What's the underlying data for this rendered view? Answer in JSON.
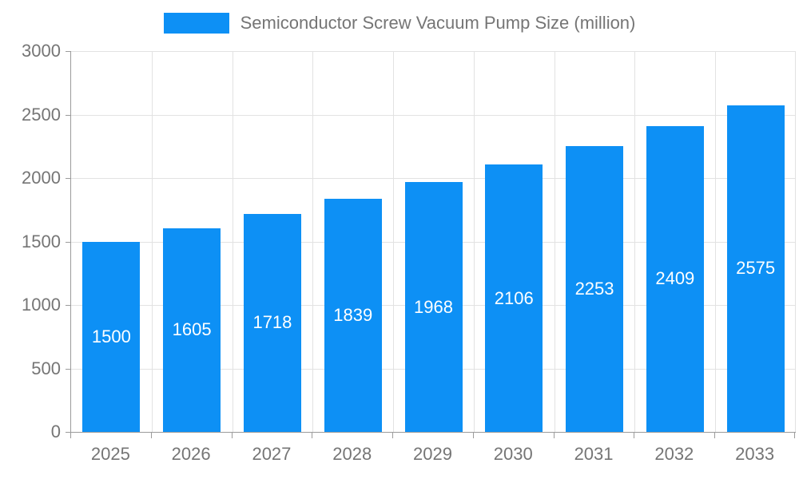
{
  "legend": {
    "label": "Semiconductor Screw Vacuum Pump Size (million)"
  },
  "colors": {
    "bar": "#0d90f5",
    "bar_label": "#ffffff",
    "grid": "#e2e2e2",
    "axis": "#9b9b9b",
    "tick_text": "#757575",
    "background": "#ffffff"
  },
  "chart_data": {
    "type": "bar",
    "title": "Semiconductor Screw Vacuum Pump Size (million)",
    "categories": [
      "2025",
      "2026",
      "2027",
      "2028",
      "2029",
      "2030",
      "2031",
      "2032",
      "2033"
    ],
    "values": [
      1500,
      1605,
      1718,
      1839,
      1968,
      2106,
      2253,
      2409,
      2575
    ],
    "xlabel": "",
    "ylabel": "",
    "ylim": [
      0,
      3000
    ],
    "yticks": [
      0,
      500,
      1000,
      1500,
      2000,
      2500,
      3000
    ],
    "grid": true,
    "legend_position": "top",
    "bar_value_labels": true
  }
}
